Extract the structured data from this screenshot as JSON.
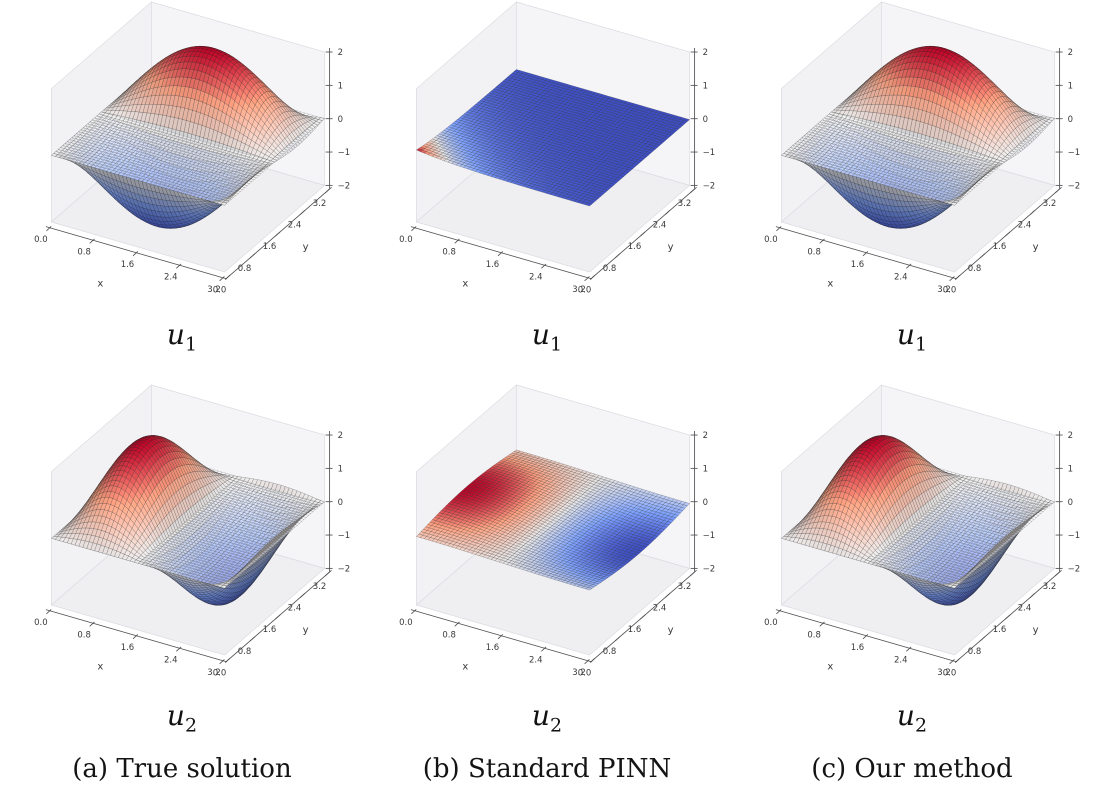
{
  "figure": {
    "background": "#ffffff",
    "columns": [
      {
        "key": "true",
        "caption": "(a) True solution"
      },
      {
        "key": "pinn",
        "caption": "(b) Standard PINN"
      },
      {
        "key": "ours",
        "caption": "(c) Our method"
      }
    ],
    "row_labels": [
      {
        "base": "u",
        "sub": "1"
      },
      {
        "base": "u",
        "sub": "2"
      }
    ]
  },
  "style": {
    "colormap": "coolwarm",
    "colormap_stops": [
      [
        59,
        76,
        192
      ],
      [
        124,
        159,
        249
      ],
      [
        221,
        220,
        220
      ],
      [
        245,
        156,
        125
      ],
      [
        180,
        4,
        38
      ]
    ],
    "pane_left": "#f2f2f5",
    "pane_right": "#f5f5f8",
    "pane_floor": "#efeff2",
    "pane_edge": "#dcdce1",
    "axis_line": "#4f4f53",
    "tick_color": "#3a3a3a",
    "mesh_line": "rgba(35,35,35,0.38)",
    "plane_face": "rgba(253,253,253,0.42)",
    "plane_line": "rgba(70,70,70,0.34)"
  },
  "chart_data": [
    {
      "id": "true-u1",
      "type": "surface3d",
      "row": 0,
      "col": 0,
      "label": "u1",
      "x_label": "x",
      "y_label": "y",
      "x_range": [
        0,
        3.2
      ],
      "y_range": [
        0,
        3.2
      ],
      "z_range": [
        -2,
        2
      ],
      "x_tick_labels": [
        "0.0",
        "0.8",
        "1.6",
        "2.4",
        "3.2"
      ],
      "x_tick_values": [
        0,
        0.8,
        1.6,
        2.4,
        3.2
      ],
      "y_tick_labels": [
        "0.0",
        "0.8",
        "1.6",
        "2.4",
        "3.2"
      ],
      "y_tick_values": [
        0,
        0.8,
        1.6,
        2.4,
        3.2
      ],
      "z_tick_labels": [
        "−2",
        "−1",
        "0",
        "1",
        "2"
      ],
      "z_tick_values": [
        -2,
        -1,
        0,
        1,
        2
      ],
      "surface": {
        "kind": "product_sin",
        "formula": "u1(x,y) = -2·sin(x)·sin(2y)",
        "amplitude": -2,
        "kx": 1,
        "ky": 2
      },
      "zero_plane": true,
      "color_norm": [
        -2,
        2
      ],
      "grid_n": 44
    },
    {
      "id": "pinn-u1",
      "type": "surface3d",
      "row": 0,
      "col": 1,
      "label": "u1",
      "x_label": "x",
      "y_label": "y",
      "x_range": [
        0,
        3.2
      ],
      "y_range": [
        0,
        3.2
      ],
      "z_range": [
        -2,
        2
      ],
      "x_tick_labels": [
        "0.0",
        "0.8",
        "1.6",
        "2.4",
        "3.2"
      ],
      "x_tick_values": [
        0,
        0.8,
        1.6,
        2.4,
        3.2
      ],
      "y_tick_labels": [
        "0.0",
        "0.8",
        "1.6",
        "2.4",
        "3.2"
      ],
      "y_tick_values": [
        0,
        0.8,
        1.6,
        2.4,
        3.2
      ],
      "z_tick_labels": [
        "−2",
        "−1",
        "0",
        "1",
        "2"
      ],
      "z_tick_values": [
        -2,
        -1,
        0,
        1,
        2
      ],
      "surface": {
        "kind": "corner_decay",
        "formula": "u1 ≈ 0.85·exp(-1.2(x+y)) - 0.12 (collapsed, near-flat)",
        "a": 0.85,
        "k": 1.2,
        "b": -0.12
      },
      "zero_plane": false,
      "color_norm": "auto",
      "z_flatten": 0.22,
      "grid_n": 44
    },
    {
      "id": "ours-u1",
      "type": "surface3d",
      "row": 0,
      "col": 2,
      "label": "u1",
      "x_label": "x",
      "y_label": "y",
      "x_range": [
        0,
        3.2
      ],
      "y_range": [
        0,
        3.2
      ],
      "z_range": [
        -2,
        2
      ],
      "x_tick_labels": [
        "0.0",
        "0.8",
        "1.6",
        "2.4",
        "3.2"
      ],
      "x_tick_values": [
        0,
        0.8,
        1.6,
        2.4,
        3.2
      ],
      "y_tick_labels": [
        "0.0",
        "0.8",
        "1.6",
        "2.4",
        "3.2"
      ],
      "y_tick_values": [
        0,
        0.8,
        1.6,
        2.4,
        3.2
      ],
      "z_tick_labels": [
        "−2",
        "−1",
        "0",
        "1",
        "2"
      ],
      "z_tick_values": [
        -2,
        -1,
        0,
        1,
        2
      ],
      "surface": {
        "kind": "product_sin",
        "formula": "u1(x,y) = -2·sin(x)·sin(2y)",
        "amplitude": -2,
        "kx": 1,
        "ky": 2
      },
      "zero_plane": true,
      "color_norm": [
        -2,
        2
      ],
      "grid_n": 44
    },
    {
      "id": "true-u2",
      "type": "surface3d",
      "row": 1,
      "col": 0,
      "label": "u2",
      "x_label": "x",
      "y_label": "y",
      "x_range": [
        0,
        3.2
      ],
      "y_range": [
        0,
        3.2
      ],
      "z_range": [
        -2,
        2
      ],
      "x_tick_labels": [
        "0.0",
        "0.8",
        "1.6",
        "2.4",
        "3.2"
      ],
      "x_tick_values": [
        0,
        0.8,
        1.6,
        2.4,
        3.2
      ],
      "y_tick_labels": [
        "0.0",
        "0.8",
        "1.6",
        "2.4",
        "3.2"
      ],
      "y_tick_values": [
        0,
        0.8,
        1.6,
        2.4,
        3.2
      ],
      "z_tick_labels": [
        "−2",
        "−1",
        "0",
        "1",
        "2"
      ],
      "z_tick_values": [
        -2,
        -1,
        0,
        1,
        2
      ],
      "surface": {
        "kind": "product_sin",
        "formula": "u2(x,y) = 2·sin(2x)·sin(y)",
        "amplitude": 2,
        "kx": 2,
        "ky": 1
      },
      "zero_plane": true,
      "color_norm": [
        -2,
        2
      ],
      "grid_n": 44
    },
    {
      "id": "pinn-u2",
      "type": "surface3d",
      "row": 1,
      "col": 1,
      "label": "u2",
      "x_label": "x",
      "y_label": "y",
      "x_range": [
        0,
        3.2
      ],
      "y_range": [
        0,
        3.2
      ],
      "z_range": [
        -2,
        2
      ],
      "x_tick_labels": [
        "0.0",
        "0.8",
        "1.6",
        "2.4",
        "3.2"
      ],
      "x_tick_values": [
        0,
        0.8,
        1.6,
        2.4,
        3.2
      ],
      "y_tick_labels": [
        "0.0",
        "0.8",
        "1.6",
        "2.4",
        "3.2"
      ],
      "y_tick_values": [
        0,
        0.8,
        1.6,
        2.4,
        3.2
      ],
      "z_tick_labels": [
        "−2",
        "−1",
        "0",
        "1",
        "2"
      ],
      "z_tick_values": [
        -2,
        -1,
        0,
        1,
        2
      ],
      "surface": {
        "kind": "edge_wave",
        "formula": "u2 ≈ 0.55·cos(πx/3.2)·sin(πy/3.2) + 0.15·cos(πx/3.2) (collapsed, near-flat)",
        "a": 0.55,
        "b": 0.15
      },
      "zero_plane": false,
      "color_norm": "auto",
      "z_flatten": 0.35,
      "grid_n": 44
    },
    {
      "id": "ours-u2",
      "type": "surface3d",
      "row": 1,
      "col": 2,
      "label": "u2",
      "x_label": "x",
      "y_label": "y",
      "x_range": [
        0,
        3.2
      ],
      "y_range": [
        0,
        3.2
      ],
      "z_range": [
        -2,
        2
      ],
      "x_tick_labels": [
        "0.0",
        "0.8",
        "1.6",
        "2.4",
        "3.2"
      ],
      "x_tick_values": [
        0,
        0.8,
        1.6,
        2.4,
        3.2
      ],
      "y_tick_labels": [
        "0.0",
        "0.8",
        "1.6",
        "2.4",
        "3.2"
      ],
      "y_tick_values": [
        0,
        0.8,
        1.6,
        2.4,
        3.2
      ],
      "z_tick_labels": [
        "−2",
        "−1",
        "0",
        "1",
        "2"
      ],
      "z_tick_values": [
        -2,
        -1,
        0,
        1,
        2
      ],
      "surface": {
        "kind": "product_sin",
        "formula": "u2(x,y) = 2·sin(2x)·sin(y)",
        "amplitude": 2,
        "kx": 2,
        "ky": 1
      },
      "zero_plane": true,
      "color_norm": [
        -2,
        2
      ],
      "grid_n": 44
    }
  ]
}
